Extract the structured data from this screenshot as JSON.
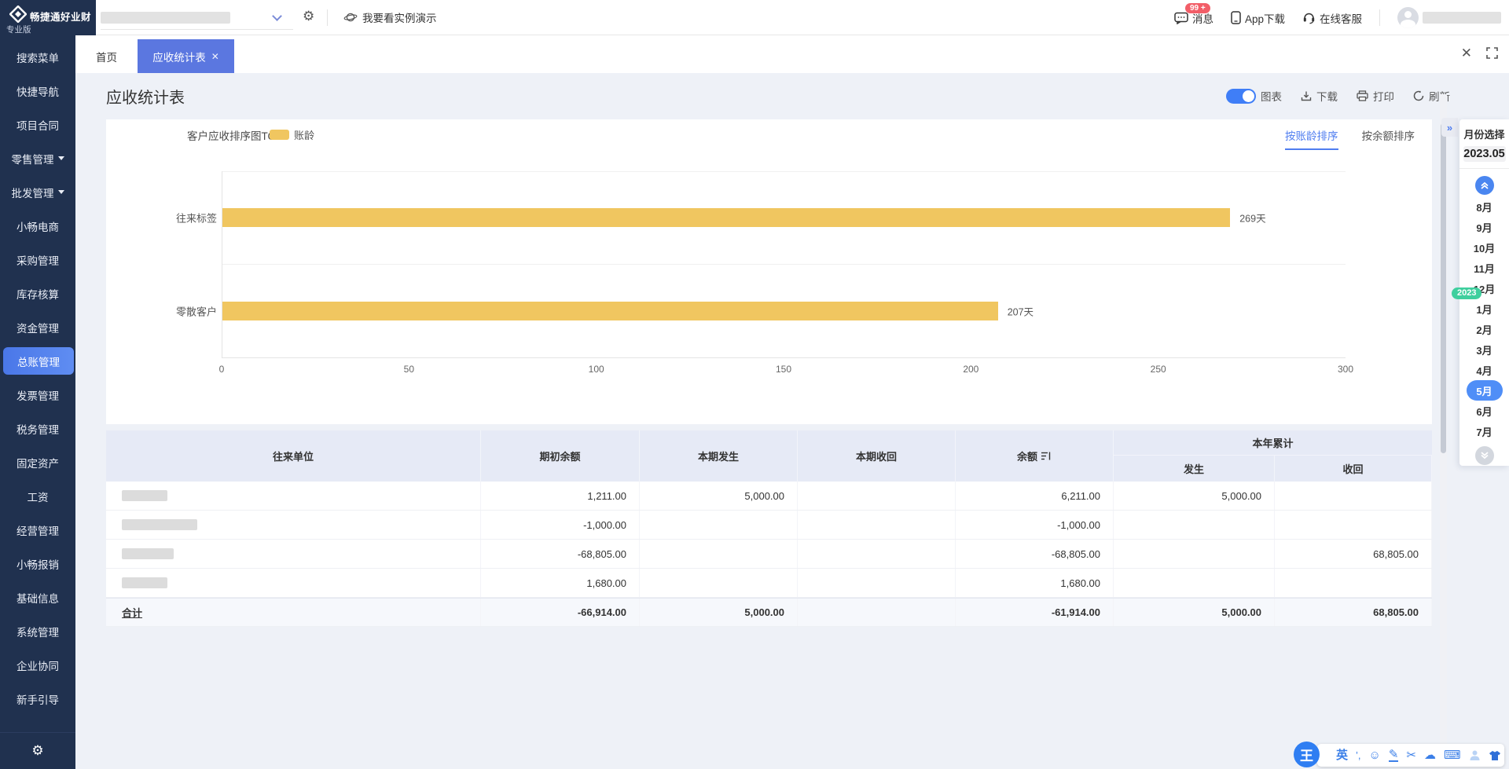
{
  "colors": {
    "accent": "#4f7df0",
    "bar": "#f0c660",
    "sidebar_bg": "#20314f",
    "active_tab": "#5b77e0",
    "month_selected": "#4f8ef7",
    "year_badge": "#3fcf9e",
    "notification_badge": "#f25e68"
  },
  "topbar": {
    "brand": "畅捷通好业财",
    "brand_sub": "专业版",
    "demo_link": "我要看实例演示",
    "messages_label": "消息",
    "messages_badge": "99 +",
    "app_download_label": "App下载",
    "support_label": "在线客服"
  },
  "tabs": {
    "home": "首页",
    "active": "应收统计表"
  },
  "page": {
    "title": "应收统计表"
  },
  "head_tools": {
    "chart_toggle": "图表",
    "download": "下载",
    "print": "打印",
    "refresh": "刷新"
  },
  "sidebar": {
    "items": [
      {
        "label": "搜索菜单"
      },
      {
        "label": "快捷导航"
      },
      {
        "label": "项目合同"
      },
      {
        "label": "零售管理",
        "caret": true
      },
      {
        "label": "批发管理",
        "caret": true
      },
      {
        "label": "小畅电商"
      },
      {
        "label": "采购管理"
      },
      {
        "label": "库存核算"
      },
      {
        "label": "资金管理"
      },
      {
        "label": "总账管理",
        "active": true
      },
      {
        "label": "发票管理"
      },
      {
        "label": "税务管理"
      },
      {
        "label": "固定资产"
      },
      {
        "label": "工资"
      },
      {
        "label": "经营管理"
      },
      {
        "label": "小畅报销"
      },
      {
        "label": "基础信息"
      },
      {
        "label": "系统管理"
      },
      {
        "label": "企业协同"
      },
      {
        "label": "新手引导"
      }
    ]
  },
  "chart_card": {
    "sort_tabs": [
      {
        "label": "按账龄排序",
        "active": true
      },
      {
        "label": "按余额排序",
        "active": false
      }
    ]
  },
  "chart_data": {
    "type": "bar",
    "orientation": "horizontal",
    "title": "客户应收排序图TOP5",
    "series_name": "账龄",
    "legend_position": "top",
    "categories": [
      "往来标签",
      "零散客户"
    ],
    "values": [
      269,
      207
    ],
    "value_labels": [
      "269天",
      "207天"
    ],
    "unit": "天",
    "xlim": [
      0,
      300
    ],
    "x_ticks": [
      0,
      50,
      100,
      150,
      200,
      250,
      300
    ],
    "grid": true,
    "bar_color": "#f0c660"
  },
  "table": {
    "columns": [
      "往来单位",
      "期初余额",
      "本期发生",
      "本期收回",
      "余额"
    ],
    "group_header": {
      "label": "本年累计",
      "children": [
        "发生",
        "收回"
      ]
    },
    "rows": [
      {
        "name_blurred": true,
        "values": [
          "1,211.00",
          "5,000.00",
          "",
          "6,211.00",
          "5,000.00",
          ""
        ]
      },
      {
        "name_blurred": true,
        "values": [
          "-1,000.00",
          "",
          "",
          "-1,000.00",
          "",
          ""
        ]
      },
      {
        "name_blurred": true,
        "values": [
          "-68,805.00",
          "",
          "",
          "-68,805.00",
          "",
          "68,805.00"
        ]
      },
      {
        "name_blurred": true,
        "values": [
          "1,680.00",
          "",
          "",
          "1,680.00",
          "",
          ""
        ]
      }
    ],
    "total": {
      "label": "合计",
      "values": [
        "-66,914.00",
        "5,000.00",
        "",
        "-61,914.00",
        "5,000.00",
        "68,805.00"
      ]
    }
  },
  "month_panel": {
    "title": "月份选择",
    "current": "2023.05",
    "year_badge": "2023",
    "months": [
      "8月",
      "9月",
      "10月",
      "11月",
      "12月",
      "1月",
      "2月",
      "3月",
      "4月",
      "5月",
      "6月",
      "7月"
    ],
    "selected": "5月"
  },
  "ime": {
    "logo": "王",
    "lang": "英",
    "punct": "’,"
  }
}
